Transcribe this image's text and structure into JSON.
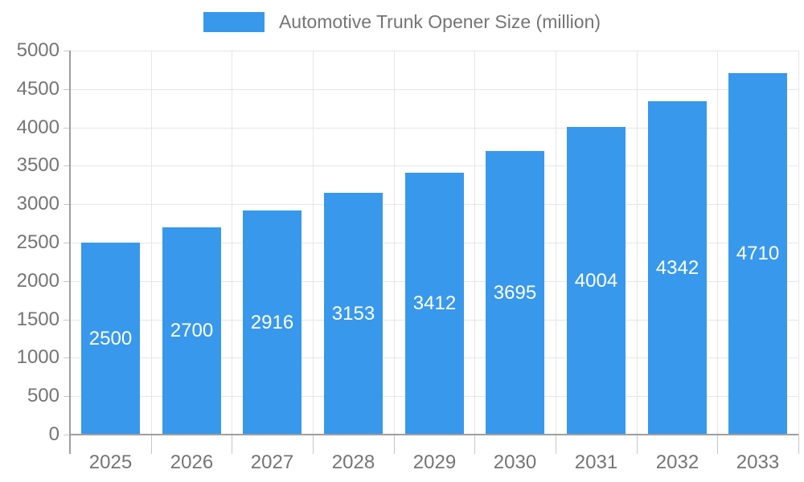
{
  "legend": {
    "label": "Automotive Trunk Opener Size (million)"
  },
  "chart_data": {
    "type": "bar",
    "title": "Automotive Trunk Opener Size (million)",
    "categories": [
      "2025",
      "2026",
      "2027",
      "2028",
      "2029",
      "2030",
      "2031",
      "2032",
      "2033"
    ],
    "values": [
      2500,
      2700,
      2916,
      3153,
      3412,
      3695,
      4004,
      4342,
      4710
    ],
    "xlabel": "",
    "ylabel": "",
    "ylim": [
      0,
      5000
    ],
    "ytick_step": 500,
    "yticks": [
      0,
      500,
      1000,
      1500,
      2000,
      2500,
      3000,
      3500,
      4000,
      4500,
      5000
    ],
    "grid": true,
    "legend_position": "top",
    "bar_color": "#3898EC",
    "bar_label_color": "#ffffff",
    "axis_text_color": "#757575",
    "gridline_color": "#e6e6e6",
    "axis_line_color": "#9e9e9e",
    "tick_color": "#c6c6c6",
    "background_color": "#ffffff"
  }
}
